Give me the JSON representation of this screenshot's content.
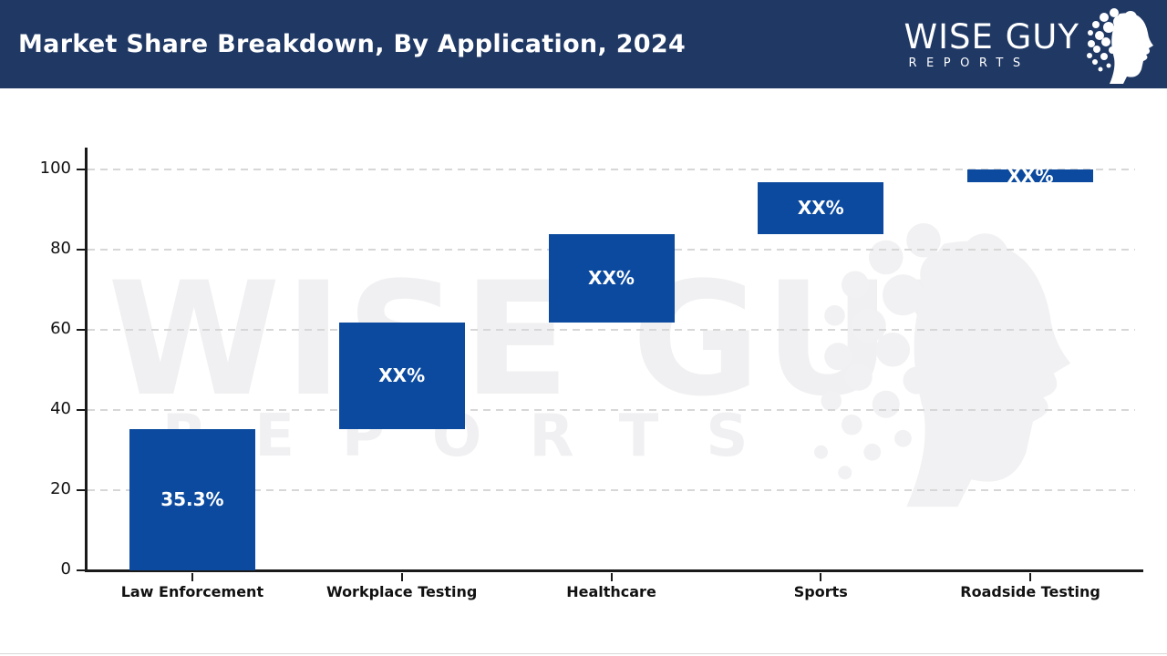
{
  "header": {
    "title": "Market Share Breakdown, By Application, 2024",
    "bg_color": "#1f3864",
    "logo": {
      "name": "WISE GUY",
      "sub": "REPORTS"
    }
  },
  "watermark": {
    "line1": "WISE GUY",
    "line2": "REPORTS"
  },
  "chart_data": {
    "type": "bar",
    "subtype": "waterfall",
    "title": "Market Share Breakdown, By Application, 2024",
    "categories": [
      "Law Enforcement",
      "Workplace Testing",
      "Healthcare",
      "Sports",
      "Roadside Testing"
    ],
    "starts": [
      0,
      35.3,
      61.8,
      83.9,
      96.8
    ],
    "ends": [
      35.3,
      61.8,
      83.9,
      96.8,
      100
    ],
    "values": [
      35.3,
      26.5,
      22.1,
      12.9,
      3.2
    ],
    "bar_labels": [
      "35.3%",
      "XX%",
      "XX%",
      "XX%",
      "XX%"
    ],
    "xlabel": "",
    "ylabel": "",
    "ylim": [
      0,
      100
    ],
    "yticks": [
      0,
      20,
      40,
      60,
      80,
      100
    ],
    "grid": "horizontal-dashed",
    "legend": "none",
    "bar_color": "#0b4a9e",
    "bar_label_color": "#ffffff"
  }
}
